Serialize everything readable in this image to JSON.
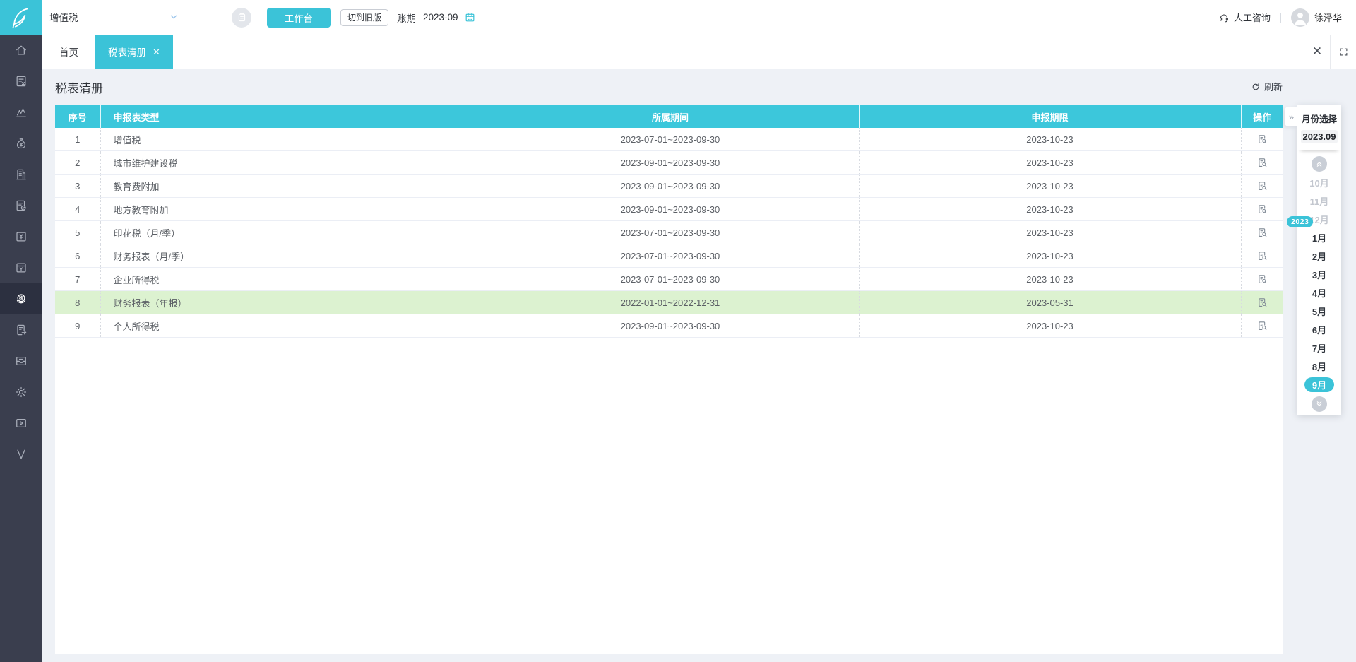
{
  "colors": {
    "accent": "#3bc3d8",
    "table_header": "#3cc7db",
    "row_highlight": "#dcf2d0",
    "sidebar_bg": "#3a3e4e"
  },
  "topbar": {
    "tax_dropdown_value": "增值税",
    "workbench_button": "工作台",
    "switch_old_button": "切到旧版",
    "period_label": "账期",
    "period_value": "2023-09",
    "support_label": "人工咨询",
    "username": "徐泽华"
  },
  "tabs": [
    {
      "name": "home",
      "label": "首页",
      "active": false,
      "closable": false
    },
    {
      "name": "tax-register",
      "label": "税表清册",
      "active": true,
      "closable": true
    }
  ],
  "page": {
    "title": "税表清册",
    "refresh_label": "刷新"
  },
  "table": {
    "columns": [
      "序号",
      "申报表类型",
      "所属期间",
      "申报期限",
      "操作"
    ],
    "op_icon": "view-report-icon",
    "rows": [
      {
        "no": "1",
        "type": "增值税",
        "period": "2023-07-01~2023-09-30",
        "deadline": "2023-10-23",
        "highlight": false
      },
      {
        "no": "2",
        "type": "城市维护建设税",
        "period": "2023-09-01~2023-09-30",
        "deadline": "2023-10-23",
        "highlight": false
      },
      {
        "no": "3",
        "type": "教育费附加",
        "period": "2023-09-01~2023-09-30",
        "deadline": "2023-10-23",
        "highlight": false
      },
      {
        "no": "4",
        "type": "地方教育附加",
        "period": "2023-09-01~2023-09-30",
        "deadline": "2023-10-23",
        "highlight": false
      },
      {
        "no": "5",
        "type": "印花税（月/季）",
        "period": "2023-07-01~2023-09-30",
        "deadline": "2023-10-23",
        "highlight": false
      },
      {
        "no": "6",
        "type": "财务报表（月/季）",
        "period": "2023-07-01~2023-09-30",
        "deadline": "2023-10-23",
        "highlight": false
      },
      {
        "no": "7",
        "type": "企业所得税",
        "period": "2023-07-01~2023-09-30",
        "deadline": "2023-10-23",
        "highlight": false
      },
      {
        "no": "8",
        "type": "财务报表（年报）",
        "period": "2022-01-01~2022-12-31",
        "deadline": "2023-05-31",
        "highlight": true
      },
      {
        "no": "9",
        "type": "个人所得税",
        "period": "2023-09-01~2023-09-30",
        "deadline": "2023-10-23",
        "highlight": false
      }
    ]
  },
  "month_picker": {
    "title": "月份选择",
    "current": "2023.09",
    "year_badge": "2023",
    "collapse_glyph": "»",
    "months": [
      {
        "label": "10月",
        "state": "muted"
      },
      {
        "label": "11月",
        "state": "muted"
      },
      {
        "label": "12月",
        "state": "muted"
      },
      {
        "label": "1月",
        "state": "normal"
      },
      {
        "label": "2月",
        "state": "normal"
      },
      {
        "label": "3月",
        "state": "normal"
      },
      {
        "label": "4月",
        "state": "normal"
      },
      {
        "label": "5月",
        "state": "normal"
      },
      {
        "label": "6月",
        "state": "normal"
      },
      {
        "label": "7月",
        "state": "normal"
      },
      {
        "label": "8月",
        "state": "normal"
      },
      {
        "label": "9月",
        "state": "selected"
      }
    ]
  },
  "sidebar": {
    "items": [
      {
        "id": "home",
        "icon": "home-icon",
        "active": false
      },
      {
        "id": "vouchers",
        "icon": "invoice-icon",
        "active": false
      },
      {
        "id": "reports",
        "icon": "chart-icon",
        "active": false
      },
      {
        "id": "funds",
        "icon": "moneybag-icon",
        "active": false
      },
      {
        "id": "company",
        "icon": "company-icon",
        "active": false
      },
      {
        "id": "checkout",
        "icon": "report-check-icon",
        "active": false
      },
      {
        "id": "receipts",
        "icon": "receipt-icon",
        "active": false
      },
      {
        "id": "billing",
        "icon": "billing-icon",
        "active": false
      },
      {
        "id": "tax",
        "icon": "tax-icon",
        "active": true
      },
      {
        "id": "carryover",
        "icon": "carryover-icon",
        "active": false
      },
      {
        "id": "archive",
        "icon": "archive-icon",
        "active": false
      },
      {
        "id": "settings",
        "icon": "gear-icon",
        "active": false
      },
      {
        "id": "tutorial",
        "icon": "video-icon",
        "active": false
      },
      {
        "id": "vip",
        "icon": "vip-icon",
        "active": false
      }
    ]
  }
}
